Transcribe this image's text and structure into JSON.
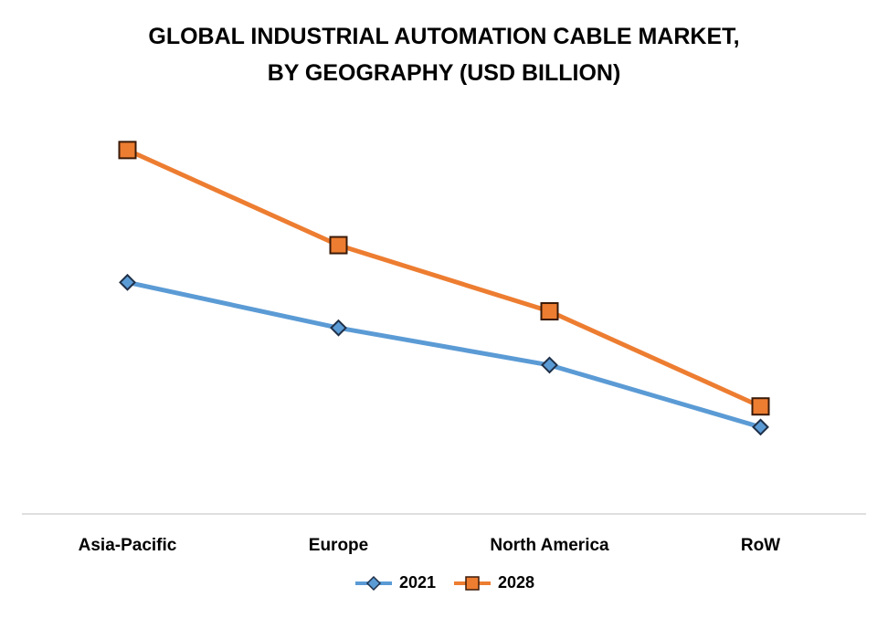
{
  "chart_data": {
    "type": "line",
    "title_lines": [
      "GLOBAL INDUSTRIAL AUTOMATION CABLE MARKET,",
      "BY GEOGRAPHY (USD BILLION)"
    ],
    "categories": [
      "Asia-Pacific",
      "Europe",
      "North America",
      "RoW"
    ],
    "series": [
      {
        "name": "2021",
        "values": [
          4.6,
          3.5,
          2.6,
          1.1
        ],
        "color": "#5B9BD5",
        "marker": "diamond"
      },
      {
        "name": "2028",
        "values": [
          7.8,
          5.5,
          3.9,
          1.6
        ],
        "color": "#ED7D31",
        "marker": "square"
      }
    ],
    "ylim": [
      -1.0,
      9.0
    ],
    "grid": false,
    "legend_position": "bottom"
  }
}
